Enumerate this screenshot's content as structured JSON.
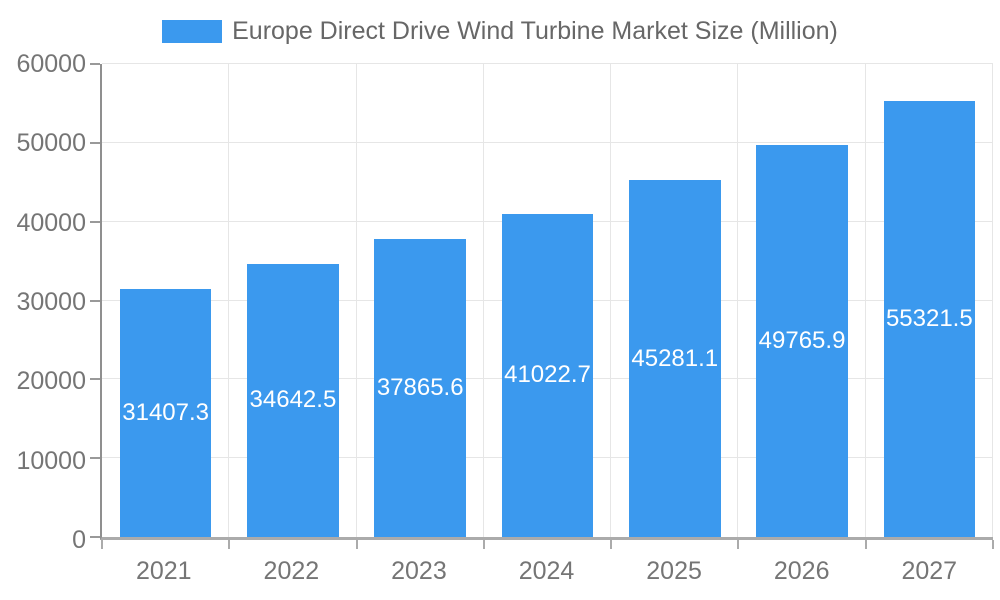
{
  "legend": {
    "items": [
      {
        "label": "Europe Direct Drive Wind Turbine Market Size (Million)",
        "color": "#3B99EE"
      }
    ],
    "position": "top-center"
  },
  "chart_data": {
    "type": "bar",
    "title": "Europe Direct Drive Wind Turbine Market Size (Million)",
    "series_name": "Europe Direct Drive Wind Turbine Market Size (Million)",
    "categories": [
      "2021",
      "2022",
      "2023",
      "2024",
      "2025",
      "2026",
      "2027"
    ],
    "values": [
      31407.3,
      34642.5,
      37865.6,
      41022.7,
      45281.1,
      49765.9,
      55321.5
    ],
    "value_labels": [
      "31407.3",
      "34642.5",
      "37865.6",
      "41022.7",
      "45281.1",
      "49765.9",
      "55321.5"
    ],
    "value_label_position": "inside-center",
    "xlabel": "",
    "ylabel": "",
    "ylim": [
      0,
      60000
    ],
    "y_ticks": [
      0,
      10000,
      20000,
      30000,
      40000,
      50000,
      60000
    ],
    "y_tick_labels": [
      "0",
      "10000",
      "20000",
      "30000",
      "40000",
      "50000",
      "60000"
    ],
    "grid": true,
    "legend_position": "top",
    "colors": {
      "bar": "#3B99EE",
      "value_label": "#FFFFFF",
      "grid_line": "#E6E6E6",
      "y_axis_line": "#8F8F8F",
      "x_axis_line": "#ABABAB",
      "axis_text": "#757575",
      "title_text": "#676767",
      "background": "#FFFFFF"
    }
  }
}
